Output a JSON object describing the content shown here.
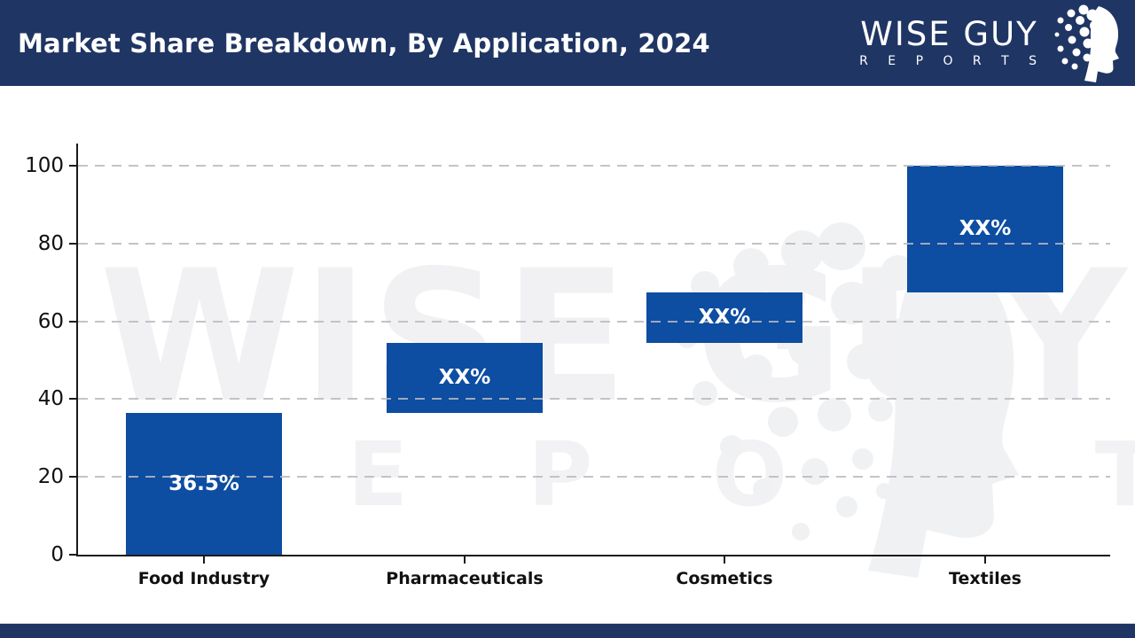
{
  "header": {
    "title": "Market Share Breakdown, By Application, 2024",
    "logo": {
      "primary": "WISE GUY",
      "secondary": "R E P O R T S"
    }
  },
  "watermark": {
    "primary": "WISE GUY",
    "secondary": "R E P O R T S"
  },
  "chart_data": {
    "type": "bar",
    "subtype": "waterfall",
    "title": "Market Share Breakdown, By Application, 2024",
    "categories": [
      "Food Industry",
      "Pharmaceuticals",
      "Cosmetics",
      "Textiles"
    ],
    "segments": [
      {
        "category": "Food Industry",
        "start": 0,
        "end": 36.5,
        "label": "36.5%"
      },
      {
        "category": "Pharmaceuticals",
        "start": 36.5,
        "end": 54.5,
        "label": "XX%"
      },
      {
        "category": "Cosmetics",
        "start": 54.5,
        "end": 67.5,
        "label": "XX%"
      },
      {
        "category": "Textiles",
        "start": 67.5,
        "end": 100,
        "label": "XX%"
      }
    ],
    "ylim": [
      0,
      100
    ],
    "yticks": [
      0,
      20,
      40,
      60,
      80,
      100
    ],
    "grid": "dashed horizontal, drawn over bars",
    "legend": "none",
    "bar_color": "#0d4da2",
    "value_label_color": "#ffffff"
  },
  "colors": {
    "header_bg": "#1f3564",
    "footer_bg": "#1f3564",
    "bar": "#0d4da2",
    "gridline": "#c9c9cd",
    "axis": "#1a1a1a",
    "watermark": "#f1f1f4"
  }
}
